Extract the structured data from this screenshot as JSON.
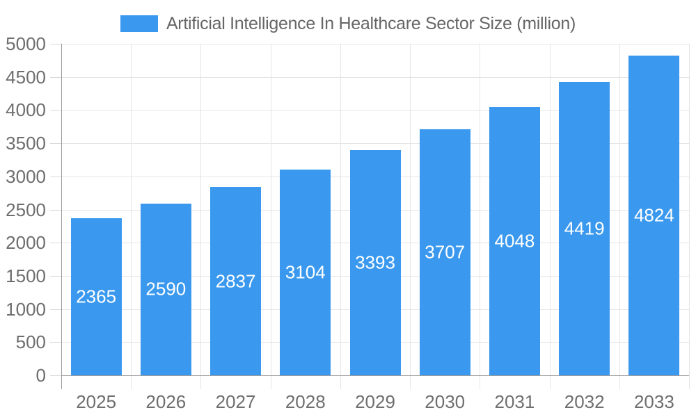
{
  "colors": {
    "bar": "#3a99ee",
    "grid": "#e5e5e5",
    "axis": "#9e9e9e",
    "tick_dash": "#d9d9d9",
    "tick_text": "#6e6e6e",
    "title_text": "#666666",
    "bar_label": "#ffffff",
    "background": "#ffffff"
  },
  "chart_data": {
    "type": "bar",
    "title": "Artificial Intelligence In Healthcare Sector Size (million)",
    "categories": [
      "2025",
      "2026",
      "2027",
      "2028",
      "2029",
      "2030",
      "2031",
      "2032",
      "2033"
    ],
    "values": [
      2365,
      2590,
      2837,
      3104,
      3393,
      3707,
      4048,
      4419,
      4824
    ],
    "xlabel": "",
    "ylabel": "",
    "ylim": [
      0,
      5000
    ],
    "ytick_step": 500,
    "yticks": [
      0,
      500,
      1000,
      1500,
      2000,
      2500,
      3000,
      3500,
      4000,
      4500,
      5000
    ],
    "grid": true,
    "legend_position": "top-center",
    "bar_label_style": "inside-center-white"
  }
}
